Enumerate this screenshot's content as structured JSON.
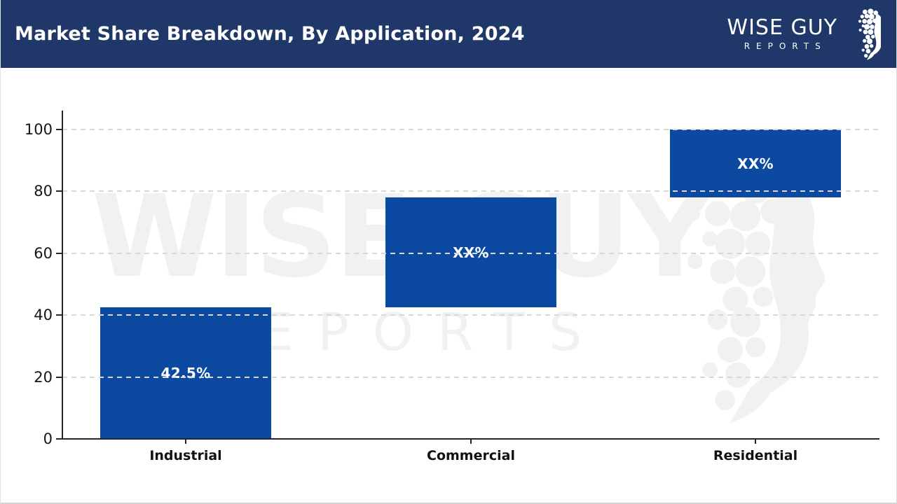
{
  "header": {
    "title": "Market Share Breakdown, By Application, 2024",
    "bg_color": "#203869",
    "logo": {
      "line1": "WISE GUY",
      "line2": "REPORTS"
    }
  },
  "watermark": {
    "line1": "WISE GUY",
    "line2": "REPORTS"
  },
  "chart_data": {
    "type": "bar",
    "subtype": "waterfall-floating-bars",
    "title": "Market Share Breakdown, By Application, 2024",
    "categories": [
      "Industrial",
      "Commercial",
      "Residential"
    ],
    "bars": [
      {
        "category": "Industrial",
        "start": 0,
        "end": 42.5,
        "label": "42.5%"
      },
      {
        "category": "Commercial",
        "start": 42.5,
        "end": 78,
        "label": "XX%"
      },
      {
        "category": "Residential",
        "start": 78,
        "end": 100,
        "label": "XX%"
      }
    ],
    "y_ticks": [
      0,
      20,
      40,
      60,
      80,
      100
    ],
    "ylim": [
      0,
      106
    ],
    "xlabel": "",
    "ylabel": "",
    "bar_color": "#0c4aa1",
    "grid": "horizontal-dashed",
    "legend": "none"
  }
}
